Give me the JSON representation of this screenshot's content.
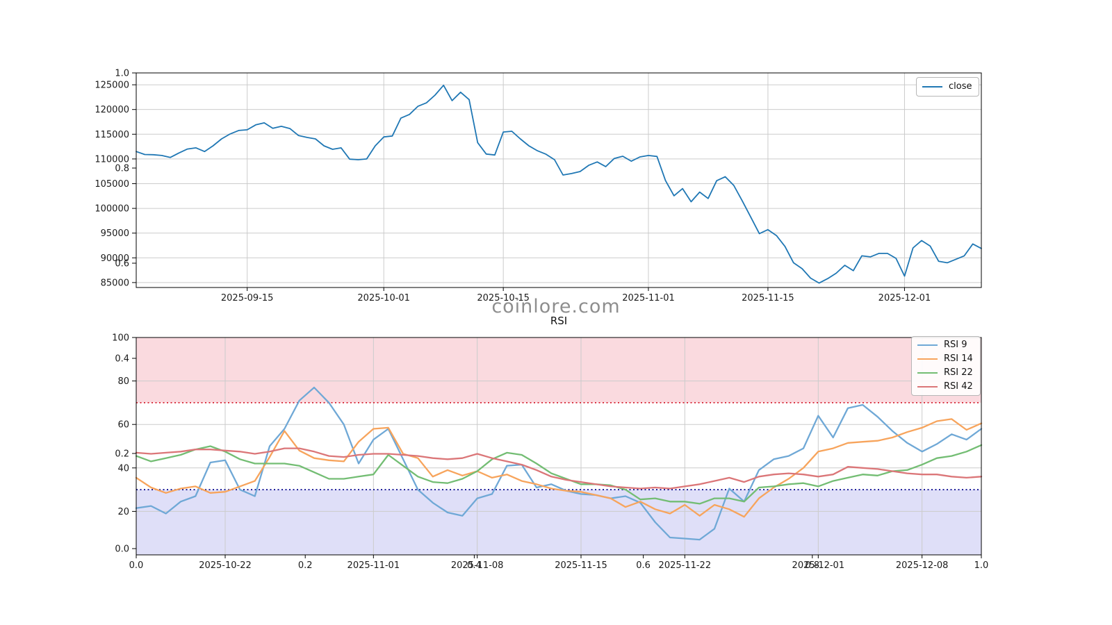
{
  "watermark": "coinlore.com",
  "figure_axis": {
    "x_tick_labels": [
      "0.0",
      "0.2",
      "0.4",
      "0.6",
      "0.8",
      "1.0"
    ],
    "y_tick_labels": [
      "1.0",
      "0.8",
      "0.6",
      "0.4",
      "0.2",
      "0.0"
    ]
  },
  "chart_data": [
    {
      "id": "price",
      "type": "line",
      "title": "",
      "legend_position": "upper right",
      "grid": true,
      "x_start": "2025-09-02",
      "x_step_days": 1,
      "x_tick_labels": [
        "2025-09-15",
        "2025-10-01",
        "2025-10-15",
        "2025-11-01",
        "2025-11-15",
        "2025-12-01"
      ],
      "y_tick_labels": [
        "85000",
        "90000",
        "95000",
        "100000",
        "105000",
        "110000",
        "115000",
        "120000",
        "125000"
      ],
      "ylim": [
        84000,
        127400
      ],
      "series": [
        {
          "name": "close",
          "color": "#1f77b4",
          "values": [
            111500,
            110900,
            110850,
            110700,
            110300,
            111200,
            112000,
            112250,
            111500,
            112650,
            114050,
            115050,
            115750,
            115900,
            116900,
            117300,
            116200,
            116600,
            116150,
            114750,
            114350,
            114050,
            112650,
            111950,
            112250,
            109950,
            109850,
            110000,
            112650,
            114450,
            114650,
            118250,
            119000,
            120650,
            121350,
            122900,
            124900,
            121800,
            123500,
            122000,
            113300,
            111000,
            110800,
            115450,
            115600,
            114050,
            112650,
            111650,
            110950,
            109850,
            106750,
            107050,
            107450,
            108700,
            109400,
            108450,
            110100,
            110550,
            109550,
            110400,
            110700,
            110500,
            105650,
            102550,
            104000,
            101350,
            103300,
            102000,
            105600,
            106400,
            104650,
            101500,
            98200,
            94900,
            95700,
            94500,
            92300,
            89000,
            87800,
            85900,
            84900,
            85800,
            86900,
            88500,
            87400,
            90400,
            90200,
            90900,
            90900,
            89900,
            86300,
            92000,
            93500,
            92400,
            89300,
            89000,
            89700,
            90400,
            92800,
            91900
          ]
        }
      ]
    },
    {
      "id": "rsi",
      "type": "line",
      "title": "RSI",
      "legend_position": "upper right",
      "grid": true,
      "x_start": "2025-10-16",
      "x_step_days": 1,
      "x_tick_labels": [
        "2025-10-22",
        "2025-11-01",
        "2025-11-08",
        "2025-11-15",
        "2025-11-22",
        "2025-12-01",
        "2025-12-08"
      ],
      "y_tick_labels": [
        "20",
        "40",
        "60",
        "80",
        "100"
      ],
      "ylim": [
        0,
        100
      ],
      "bands": [
        {
          "from": 70,
          "to": 100,
          "color": "#fadadf",
          "meaning": "overbought zone"
        },
        {
          "from": 0,
          "to": 30,
          "color": "#dfdff8",
          "meaning": "oversold zone"
        }
      ],
      "hlines": [
        {
          "y": 70,
          "color": "#d62030",
          "style": "dotted"
        },
        {
          "y": 30,
          "color": "#00008b",
          "style": "dotted"
        }
      ],
      "series": [
        {
          "name": "RSI 9",
          "color": "#6fa8d6",
          "values": [
            21.5,
            22.5,
            19,
            24.5,
            27,
            42.5,
            43.5,
            30,
            27,
            50,
            58,
            71,
            77,
            70,
            60,
            42,
            53,
            58,
            44,
            30,
            24,
            19.5,
            18,
            26,
            28,
            41,
            41.5,
            31,
            32.5,
            29.5,
            28,
            27.5,
            26,
            27,
            24,
            15,
            8,
            7.5,
            7,
            12,
            30.5,
            24.5,
            39,
            44,
            45.5,
            49,
            64,
            54,
            67.5,
            69,
            63.5,
            57,
            51.5,
            47.5,
            51,
            55.5,
            53,
            58
          ]
        },
        {
          "name": "RSI 14",
          "color": "#f7a45c",
          "values": [
            35.5,
            31,
            28.5,
            30.5,
            31.5,
            28.5,
            29,
            31.5,
            34,
            45,
            57,
            48,
            44.5,
            43.5,
            43,
            52,
            58,
            58.5,
            46.5,
            44.5,
            36,
            39,
            36.5,
            38.5,
            35.5,
            37,
            34,
            32.5,
            30.5,
            29.5,
            29,
            27.5,
            26,
            22,
            24.5,
            21,
            19,
            23,
            18,
            23,
            21,
            17.5,
            26,
            31,
            35,
            40,
            47.5,
            49,
            51.5,
            52,
            52.5,
            54,
            56.5,
            58.5,
            61.5,
            62.5,
            57.5,
            60.5
          ]
        },
        {
          "name": "RSI 22",
          "color": "#73bd73",
          "values": [
            45.5,
            43,
            44.5,
            46,
            48.5,
            50,
            47.5,
            44,
            42,
            42,
            42,
            41,
            38,
            35,
            35,
            36,
            37,
            46,
            41,
            36,
            33.5,
            33,
            35,
            38.5,
            44,
            47,
            46,
            42,
            37.5,
            35,
            32.5,
            32.5,
            32,
            30,
            25.5,
            26,
            24.5,
            24.5,
            23.5,
            26,
            26,
            24.5,
            31,
            31.5,
            32.5,
            33,
            31.5,
            34,
            35.5,
            37,
            36.5,
            38.5,
            39,
            41.5,
            44.5,
            45.5,
            47.5,
            50.5
          ]
        },
        {
          "name": "RSI 42",
          "color": "#db7678",
          "values": [
            47,
            46.5,
            47,
            47.5,
            48.5,
            48.5,
            48,
            47.5,
            46.5,
            47.5,
            49,
            49,
            47.5,
            45.5,
            45,
            46,
            46.5,
            46.5,
            46,
            45.5,
            44.5,
            44,
            44.5,
            46.5,
            44.5,
            43,
            41.5,
            39,
            36,
            34.5,
            33.5,
            32.5,
            31.5,
            31,
            30.5,
            31,
            30.5,
            31.5,
            32.5,
            34,
            35.5,
            33.5,
            36,
            37,
            37.5,
            37,
            36,
            37,
            40.5,
            40,
            39.5,
            38.5,
            37.5,
            37,
            37,
            36,
            35.5,
            36
          ]
        }
      ]
    }
  ]
}
